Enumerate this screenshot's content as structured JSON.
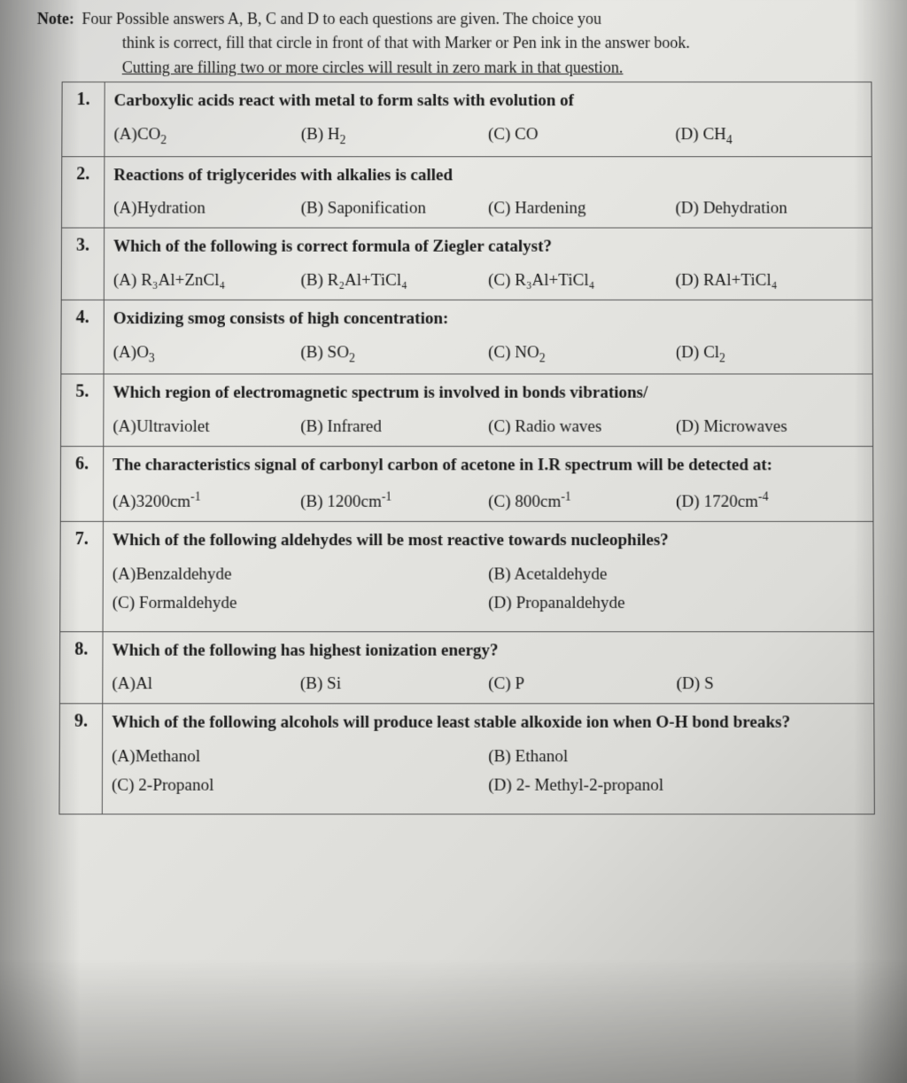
{
  "note": {
    "label": "Note:",
    "line1": "Four Possible answers A, B, C and D to each questions are given. The choice you",
    "line2": "think is correct, fill that circle in front of that with Marker or Pen ink in the answer book.",
    "line3": "Cutting are filling two or more circles will result in zero mark in that question."
  },
  "questions": [
    {
      "num": "1.",
      "text": "Carboxylic acids react with metal to form salts with evolution of",
      "layout": "row4",
      "options": [
        {
          "l": "(A)",
          "t": "CO",
          "sub": "2"
        },
        {
          "l": "(B)",
          "t": " H",
          "sub": "2"
        },
        {
          "l": "(C)",
          "t": " CO"
        },
        {
          "l": "(D)",
          "t": " CH",
          "sub": "4"
        }
      ]
    },
    {
      "num": "2.",
      "text": "Reactions of triglycerides with alkalies is called",
      "layout": "row4",
      "options": [
        {
          "l": "(A)",
          "t": "Hydration"
        },
        {
          "l": "(B)",
          "t": " Saponification"
        },
        {
          "l": "(C)",
          "t": " Hardening"
        },
        {
          "l": "(D)",
          "t": " Dehydration"
        }
      ]
    },
    {
      "num": "3.",
      "text": "Which of the following is correct formula of Ziegler catalyst?",
      "layout": "row4",
      "options": [
        {
          "l": "(A)",
          "t": " R₃Al+ZnCl₄"
        },
        {
          "l": "(B)",
          "t": " R₂Al+TiCl₄"
        },
        {
          "l": "(C)",
          "t": " R₃Al+TiCl₄"
        },
        {
          "l": "(D)",
          "t": " RAl+TiCl₄"
        }
      ]
    },
    {
      "num": "4.",
      "text": "Oxidizing smog consists of high concentration:",
      "layout": "row4",
      "options": [
        {
          "l": "(A)",
          "t": "O",
          "sub": "3"
        },
        {
          "l": "(B)",
          "t": " SO",
          "sub": "2"
        },
        {
          "l": "(C)",
          "t": " NO",
          "sub": "2"
        },
        {
          "l": "(D)",
          "t": " Cl",
          "sub": "2"
        }
      ]
    },
    {
      "num": "5.",
      "text": "Which region of electromagnetic spectrum is involved in bonds vibrations/",
      "layout": "row4",
      "options": [
        {
          "l": "(A)",
          "t": "Ultraviolet"
        },
        {
          "l": "(B)",
          "t": " Infrared"
        },
        {
          "l": "(C)",
          "t": " Radio waves"
        },
        {
          "l": "(D)",
          "t": " Microwaves"
        }
      ]
    },
    {
      "num": "6.",
      "text": "The characteristics signal of carbonyl carbon of acetone in I.R spectrum will be detected at:",
      "layout": "row4",
      "options": [
        {
          "l": "(A)",
          "t": "3200cm",
          "sup": "-1"
        },
        {
          "l": "(B)",
          "t": " 1200cm",
          "sup": "-1"
        },
        {
          "l": "(C)",
          "t": " 800cm",
          "sup": "-1"
        },
        {
          "l": "(D)",
          "t": " 1720cm",
          "sup": "-4"
        }
      ]
    },
    {
      "num": "7.",
      "text": "Which of the following aldehydes will be most reactive towards nucleophiles?",
      "layout": "row2",
      "options": [
        {
          "l": "(A)",
          "t": "Benzaldehyde"
        },
        {
          "l": "(B)",
          "t": " Acetaldehyde"
        },
        {
          "l": "(C)",
          "t": " Formaldehyde"
        },
        {
          "l": "(D)",
          "t": " Propanaldehyde"
        }
      ]
    },
    {
      "num": "8.",
      "text": "Which of the following has highest ionization energy?",
      "layout": "row4",
      "options": [
        {
          "l": "(A)",
          "t": "Al"
        },
        {
          "l": "(B)",
          "t": " Si"
        },
        {
          "l": "(C)",
          "t": " P"
        },
        {
          "l": "(D)",
          "t": " S"
        }
      ]
    },
    {
      "num": "9.",
      "text": "Which of the following alcohols will produce least stable alkoxide ion when O-H bond breaks?",
      "layout": "row2",
      "options": [
        {
          "l": "(A)",
          "t": "Methanol"
        },
        {
          "l": "(B)",
          "t": " Ethanol"
        },
        {
          "l": "(C)",
          "t": " 2-Propanol"
        },
        {
          "l": "(D)",
          "t": " 2- Methyl-2-propanol"
        }
      ]
    }
  ]
}
